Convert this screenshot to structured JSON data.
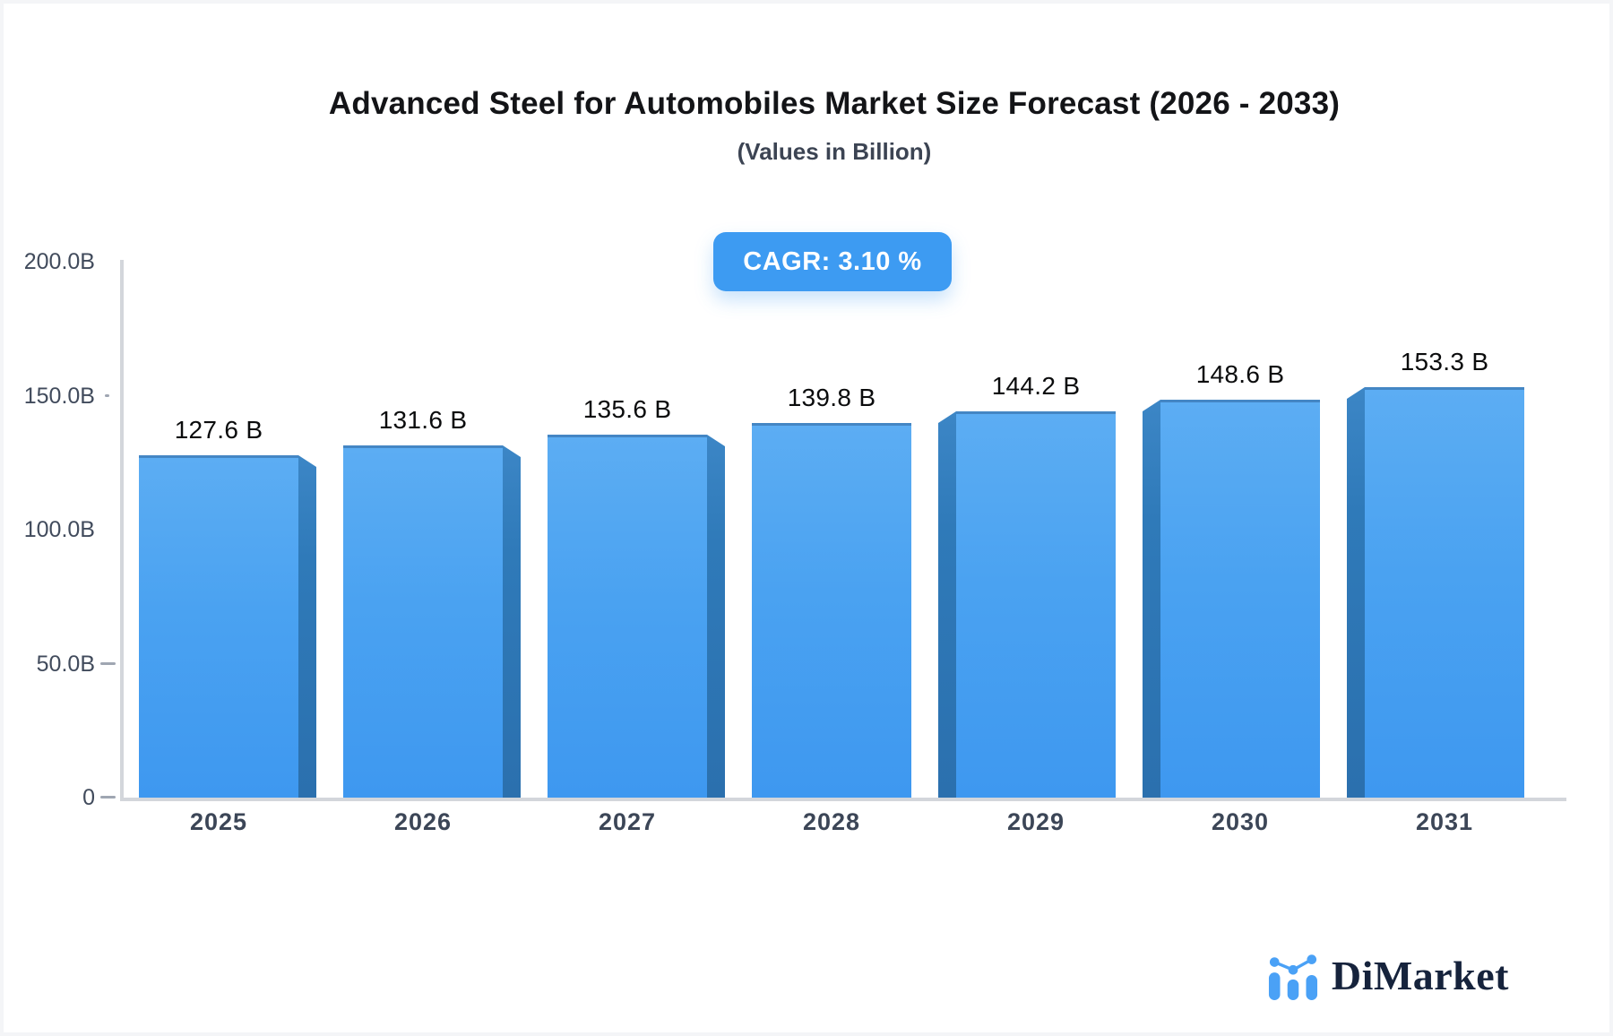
{
  "header": {
    "title": "Advanced Steel for Automobiles Market Size Forecast (2026 - 2033)",
    "subtitle": "(Values in Billion)",
    "cagr_label": "CAGR: 3.10 %"
  },
  "chart_data": {
    "type": "bar",
    "title": "Advanced Steel for Automobiles Market Size Forecast (2026 - 2033)",
    "subtitle": "(Values in Billion)",
    "xlabel": "",
    "ylabel": "",
    "unit": "Billion",
    "cagr": "3.10 %",
    "categories": [
      "2025",
      "2026",
      "2027",
      "2028",
      "2029",
      "2030",
      "2031"
    ],
    "values": [
      127.6,
      131.6,
      135.6,
      139.8,
      144.2,
      148.6,
      153.3
    ],
    "value_labels": [
      "127.6 B",
      "131.6 B",
      "135.6 B",
      "139.8 B",
      "144.2 B",
      "148.6 B",
      "153.3 B"
    ],
    "ylim": [
      0,
      200
    ],
    "yticks": [
      {
        "value": 200,
        "label": "200.0B",
        "tick": "none"
      },
      {
        "value": 150,
        "label": "150.0B",
        "tick": "dot"
      },
      {
        "value": 100,
        "label": "100.0B",
        "tick": "none"
      },
      {
        "value": 50,
        "label": "50.0B",
        "tick": "dash"
      },
      {
        "value": 0,
        "label": "0",
        "tick": "dash"
      }
    ],
    "grid": false,
    "legend": "none",
    "bar_style": "3d-bevel"
  },
  "branding": {
    "logo_text": "DiMarket",
    "logo_icon": "mini-bar-chart-icon"
  },
  "colors": {
    "title": "#131417",
    "subtitle": "#3c4453",
    "badge_bg": "#3d9bf2",
    "badge_text": "#ffffff",
    "axis_line": "#d3d6db",
    "tick": "#9fa6b2",
    "y_label": "#414b5c",
    "x_label": "#3c4657",
    "value_label": "#0b0c0d",
    "bar_top": "#5cadf3",
    "bar_bottom": "#3e98f0",
    "bar_edge": "#4486c4",
    "bar_side": "#2f7ab9",
    "logo_text": "#16233c",
    "logo_icon": "#4aa1f6"
  }
}
